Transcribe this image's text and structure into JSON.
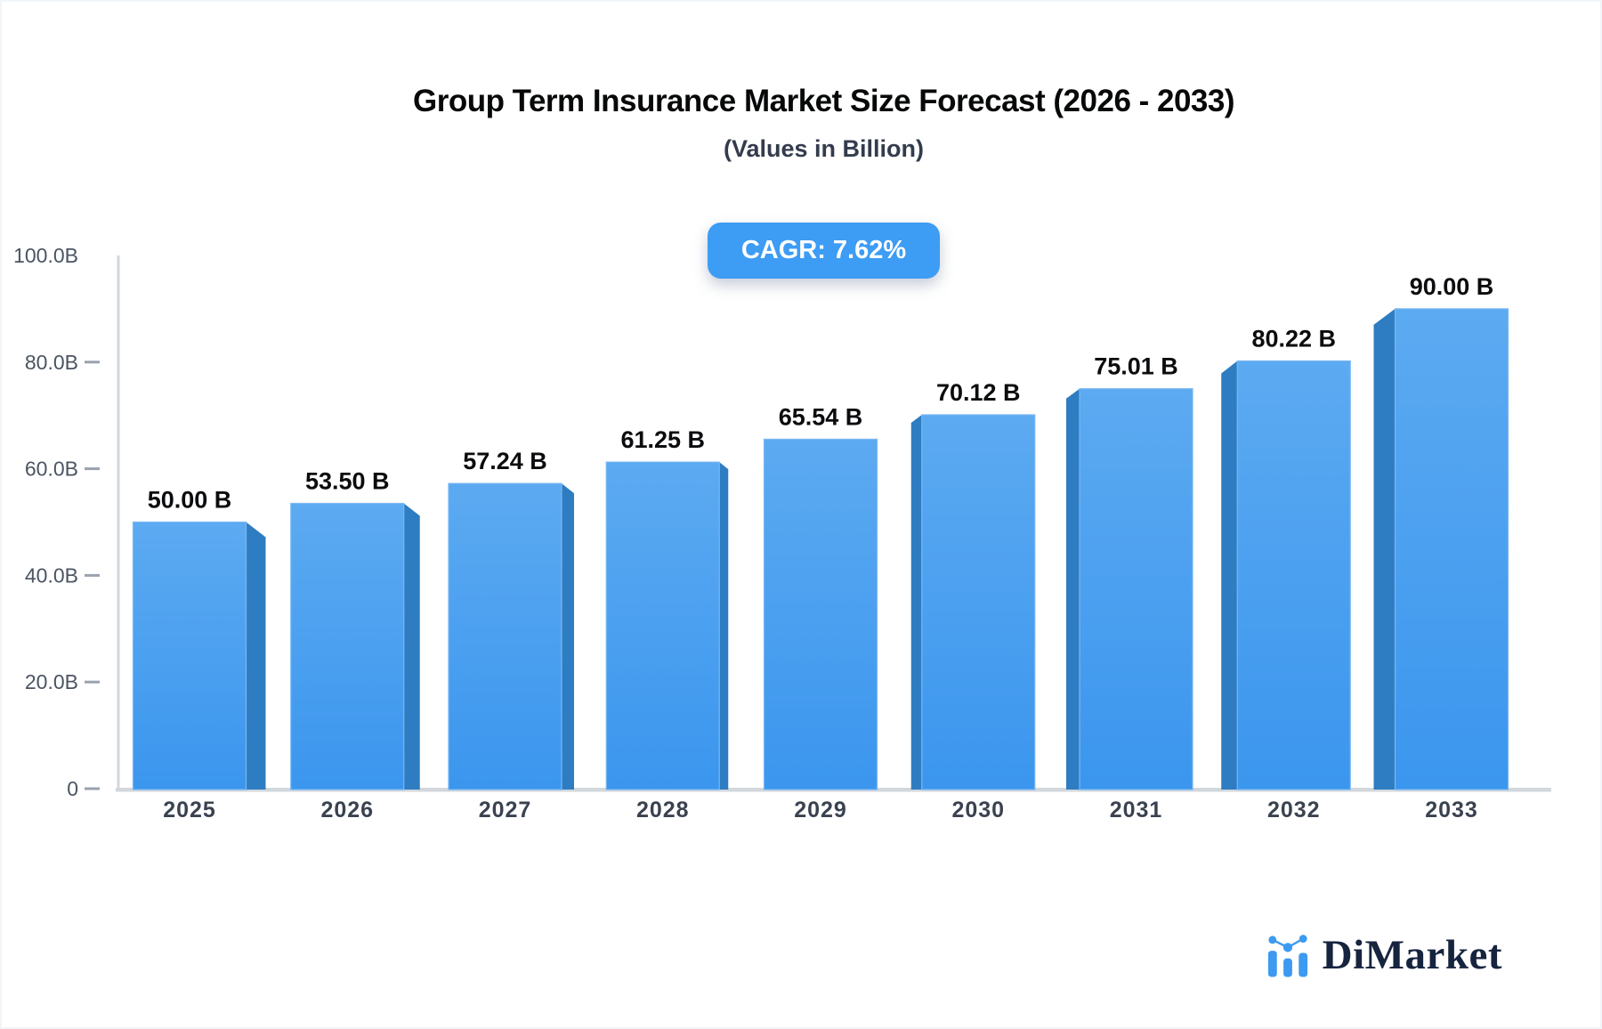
{
  "header": {
    "title": "Group Term Insurance Market Size Forecast (2026 - 2033)",
    "subtitle": "(Values in Billion)"
  },
  "badge": {
    "label": "CAGR: 7.62%",
    "bg": "#3d9cf4",
    "text_color": "#ffffff"
  },
  "chart_data": {
    "type": "bar",
    "title": "Group Term Insurance Market Size Forecast (2026 - 2033)",
    "subtitle": "(Values in Billion)",
    "categories": [
      "2025",
      "2026",
      "2027",
      "2028",
      "2029",
      "2030",
      "2031",
      "2032",
      "2033"
    ],
    "values": [
      50.0,
      53.5,
      57.24,
      61.25,
      65.54,
      70.12,
      75.01,
      80.22,
      90.0
    ],
    "bar_labels": [
      "50.00 B",
      "53.50 B",
      "57.24 B",
      "61.25 B",
      "65.54 B",
      "70.12 B",
      "75.01 B",
      "80.22 B",
      "90.00 B"
    ],
    "xlabel": "",
    "ylabel": "",
    "ylim": [
      0,
      100
    ],
    "yticks": [
      {
        "v": 0,
        "label": "0"
      },
      {
        "v": 20,
        "label": "20.0B"
      },
      {
        "v": 40,
        "label": "40.0B"
      },
      {
        "v": 60,
        "label": "60.0B"
      },
      {
        "v": 80,
        "label": "80.0B"
      },
      {
        "v": 100,
        "label": "100.0B"
      }
    ],
    "grid": false,
    "legend": "none",
    "effect": "3d-perspective-columns",
    "style": {
      "bar_face_top": "#5caaf1",
      "bar_face_bottom": "#3b96ee",
      "bar_face_edge": "#79b7f3",
      "bar_side": "#2e7cc1",
      "axis": "#d2d7dc",
      "tick": "#99a2ad",
      "ytick_color": "#4b5563",
      "xtick_color": "#3a4250",
      "value_label_color": "#0b0c0e"
    }
  },
  "logo": {
    "name": "DiMarket",
    "text_color": "#16243e",
    "icon_color": "#3d9af0"
  }
}
